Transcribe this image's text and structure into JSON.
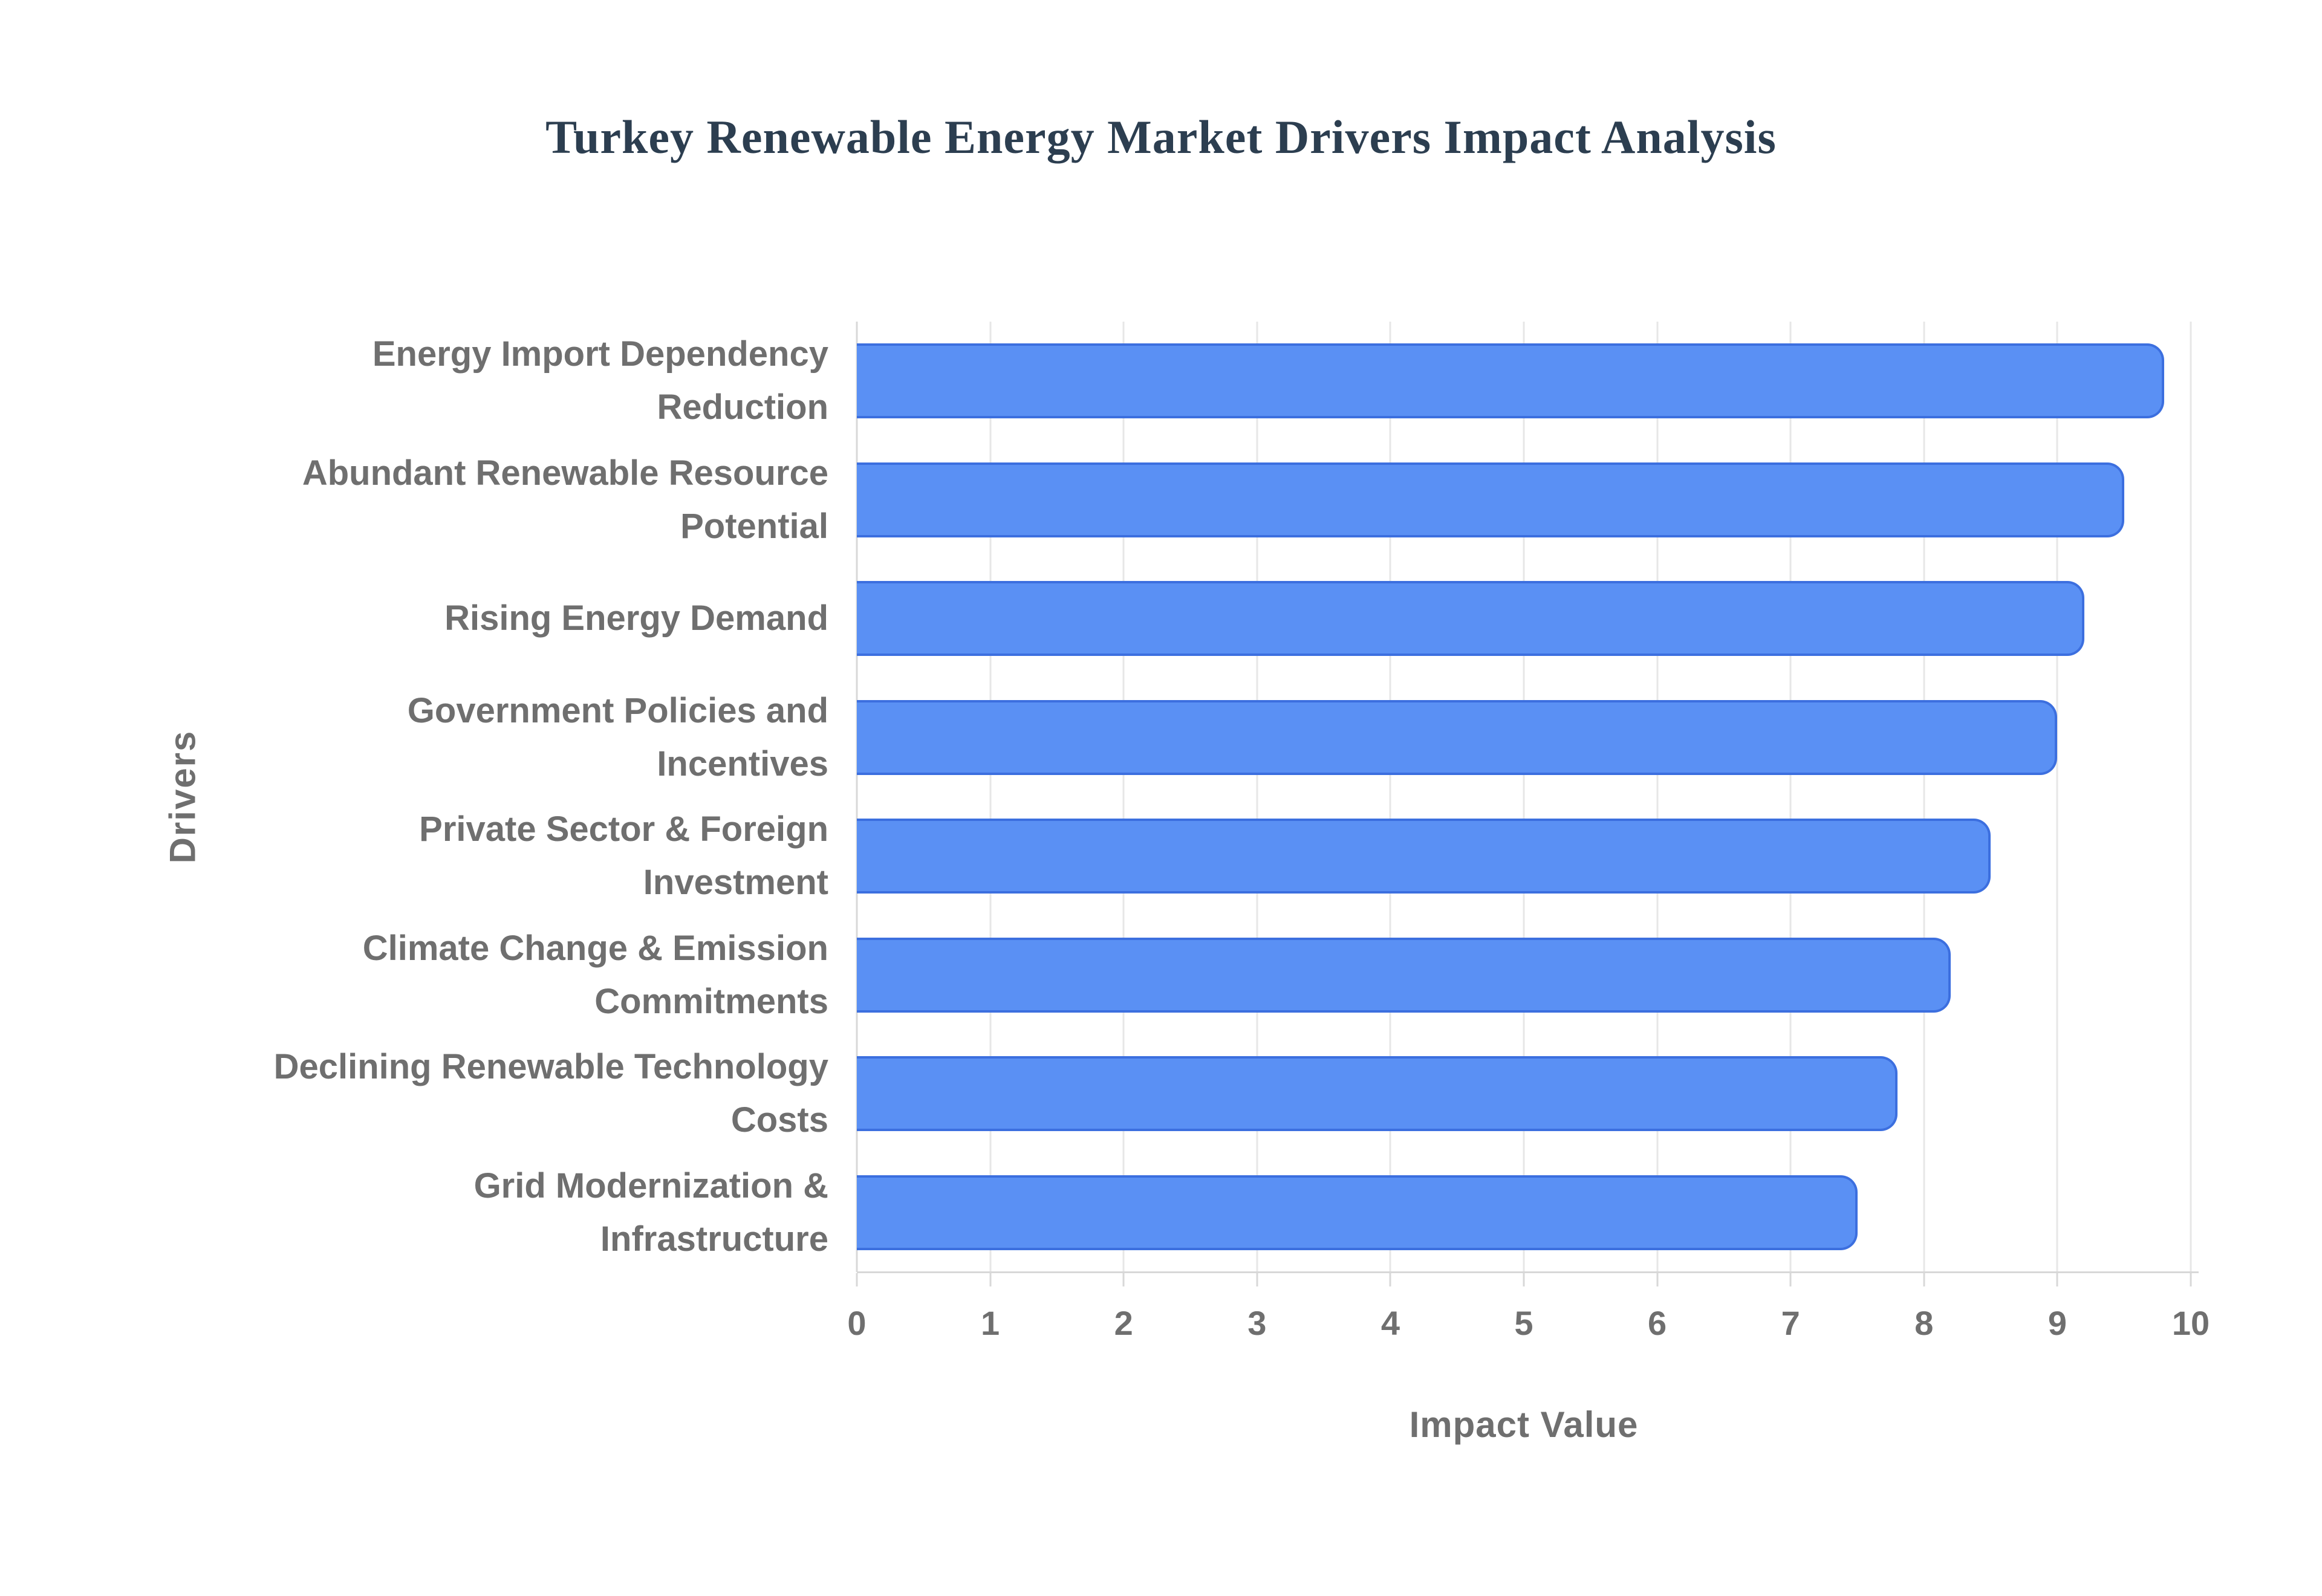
{
  "title": "Turkey Renewable Energy Market Drivers Impact Analysis",
  "axes": {
    "x_label": "Impact Value",
    "y_label": "Drivers"
  },
  "colors": {
    "bar_fill": "#5a90f4",
    "bar_border": "#3c6fdf",
    "grid": "#e7e7e7",
    "axis": "#d8d8d8",
    "title_text": "#2c3e50",
    "label_text": "#6f6f6f"
  },
  "chart_data": {
    "type": "bar",
    "orientation": "horizontal",
    "title": "Turkey Renewable Energy Market Drivers Impact Analysis",
    "xlabel": "Impact Value",
    "ylabel": "Drivers",
    "xlim": [
      0,
      10
    ],
    "x_ticks": [
      0,
      1,
      2,
      3,
      4,
      5,
      6,
      7,
      8,
      9,
      10
    ],
    "grid": true,
    "legend": "none",
    "categories": [
      "Energy Import Dependency Reduction",
      "Abundant Renewable Resource Potential",
      "Rising Energy Demand",
      "Government Policies and Incentives",
      "Private Sector & Foreign Investment",
      "Climate Change & Emission Commitments",
      "Declining Renewable Technology Costs",
      "Grid Modernization & Infrastructure"
    ],
    "category_lines": [
      [
        "Energy Import Dependency",
        "Reduction"
      ],
      [
        "Abundant Renewable Resource",
        "Potential"
      ],
      [
        "Rising Energy Demand"
      ],
      [
        "Government Policies and",
        "Incentives"
      ],
      [
        "Private Sector & Foreign",
        "Investment"
      ],
      [
        "Climate Change & Emission",
        "Commitments"
      ],
      [
        "Declining Renewable Technology",
        "Costs"
      ],
      [
        "Grid Modernization &",
        "Infrastructure"
      ]
    ],
    "values": [
      9.8,
      9.5,
      9.2,
      9.0,
      8.5,
      8.2,
      7.8,
      7.5
    ]
  }
}
